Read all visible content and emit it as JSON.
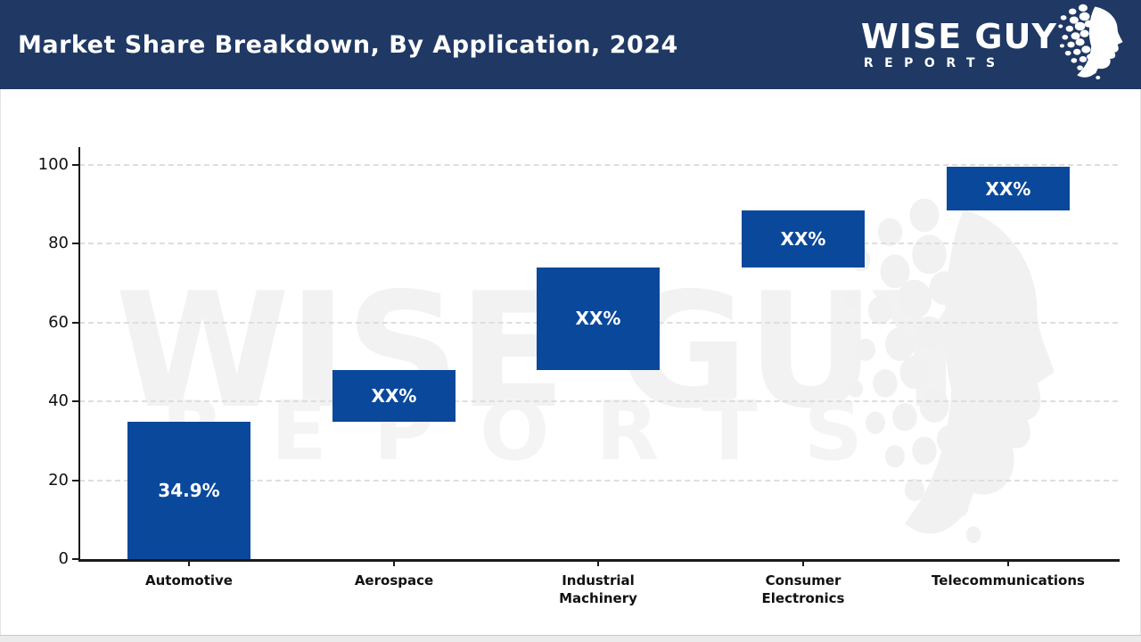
{
  "header": {
    "title": "Market Share Breakdown, By Application, 2024",
    "logo": {
      "line1": "WISE GUY",
      "line2": "REPORTS"
    }
  },
  "watermark": {
    "line1": "WISE GUY",
    "line2": "REPORTS"
  },
  "colors": {
    "header_bg": "#1f3864",
    "bar": "#0a489b",
    "bar_label": "#ffffff",
    "grid": "#dedede",
    "axis": "#1a1a1a",
    "watermark": "#f2f2f2"
  },
  "chart_data": {
    "type": "bar",
    "subtype": "waterfall",
    "title": "Market Share Breakdown, By Application, 2024",
    "categories": [
      "Automotive",
      "Aerospace",
      "Industrial\nMachinery",
      "Consumer\nElectronics",
      "Telecommunications"
    ],
    "segments": [
      {
        "category": "Automotive",
        "start": 0,
        "end": 34.9,
        "label": "34.9%"
      },
      {
        "category": "Aerospace",
        "start": 34.9,
        "end": 48.0,
        "label": "XX%"
      },
      {
        "category": "Industrial Machinery",
        "start": 48.0,
        "end": 74.0,
        "label": "XX%"
      },
      {
        "category": "Consumer Electronics",
        "start": 74.0,
        "end": 88.5,
        "label": "XX%"
      },
      {
        "category": "Telecommunications",
        "start": 88.5,
        "end": 99.5,
        "label": "XX%"
      }
    ],
    "y_ticks": [
      0,
      20,
      40,
      60,
      80,
      100
    ],
    "ylim": [
      0,
      104.5
    ],
    "xlabel": "",
    "ylabel": "",
    "grid": "horizontal-dashed",
    "legend": "none",
    "bar_color": "#0a489b",
    "value_label_color": "#ffffff"
  }
}
